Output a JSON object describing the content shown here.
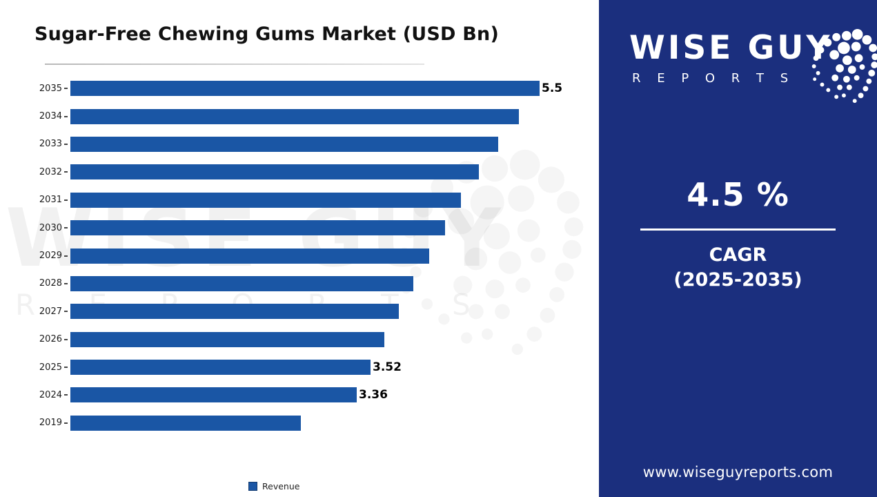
{
  "chart_data": {
    "type": "bar",
    "orientation": "horizontal",
    "title": "Sugar-Free Chewing Gums Market (USD Bn)",
    "unit": "USD Bn",
    "categories": [
      "2035",
      "2034",
      "2033",
      "2032",
      "2031",
      "2030",
      "2029",
      "2028",
      "2027",
      "2026",
      "2025",
      "2024",
      "2019"
    ],
    "series": [
      {
        "name": "Revenue",
        "values": [
          5.5,
          5.26,
          5.02,
          4.79,
          4.58,
          4.39,
          4.21,
          4.02,
          3.85,
          3.68,
          3.52,
          3.36,
          2.7
        ]
      }
    ],
    "value_labels": {
      "2035": "5.5",
      "2025": "3.52",
      "2024": "3.36"
    },
    "xlim": [
      0,
      6.2
    ],
    "grid": false,
    "legend": {
      "label": "Revenue",
      "position": "bottom"
    },
    "bar_color": "#1a56a5"
  },
  "sidebar": {
    "logo_line1": "WISE GUY",
    "logo_line2": "R E P O R T S",
    "cagr_value": "4.5 %",
    "cagr_label_line1": "CAGR",
    "cagr_label_line2": "(2025-2035)",
    "website": "www.wiseguyreports.com",
    "background": "#1b2f7e"
  },
  "watermark": {
    "line1": "WISE GUY",
    "line2": "R E P O R T S"
  }
}
